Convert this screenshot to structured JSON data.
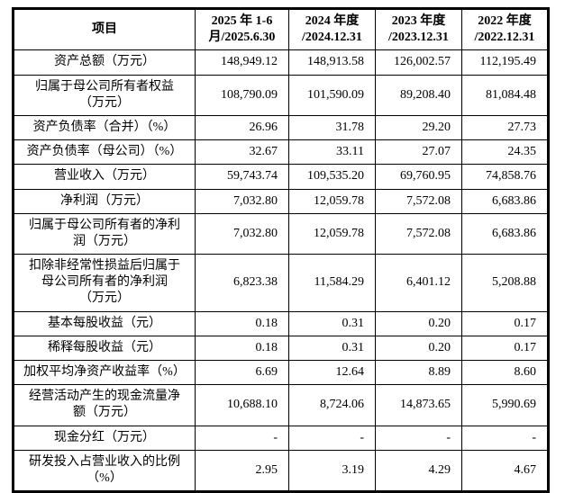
{
  "table": {
    "header": {
      "item_label": "项目",
      "periods": [
        "2025 年 1-6\n月/2025.6.30",
        "2024 年度\n/2024.12.31",
        "2023 年度\n/2023.12.31",
        "2022 年度\n/2022.12.31"
      ]
    },
    "rows": [
      {
        "label": "资产总额（万元）",
        "values": [
          "148,949.12",
          "148,913.58",
          "126,002.57",
          "112,195.49"
        ]
      },
      {
        "label": "归属于母公司所有者权益\n（万元）",
        "values": [
          "108,790.09",
          "101,590.09",
          "89,208.40",
          "81,084.48"
        ]
      },
      {
        "label": "资产负债率（合并）（%）",
        "values": [
          "26.96",
          "31.78",
          "29.20",
          "27.73"
        ]
      },
      {
        "label": "资产负债率（母公司）（%）",
        "values": [
          "32.67",
          "33.11",
          "27.07",
          "24.35"
        ]
      },
      {
        "label": "营业收入（万元）",
        "values": [
          "59,743.74",
          "109,535.20",
          "69,760.95",
          "74,858.76"
        ]
      },
      {
        "label": "净利润（万元）",
        "values": [
          "7,032.80",
          "12,059.78",
          "7,572.08",
          "6,683.86"
        ]
      },
      {
        "label": "归属于母公司所有者的净利\n润（万元）",
        "values": [
          "7,032.80",
          "12,059.78",
          "7,572.08",
          "6,683.86"
        ]
      },
      {
        "label": "扣除非经常性损益后归属于\n母公司所有者的净利润\n（万元）",
        "values": [
          "6,823.38",
          "11,584.29",
          "6,401.12",
          "5,208.88"
        ]
      },
      {
        "label": "基本每股收益（元）",
        "values": [
          "0.18",
          "0.31",
          "0.20",
          "0.17"
        ]
      },
      {
        "label": "稀释每股收益（元）",
        "values": [
          "0.18",
          "0.31",
          "0.20",
          "0.17"
        ]
      },
      {
        "label": "加权平均净资产收益率（%）",
        "values": [
          "6.69",
          "12.64",
          "8.89",
          "8.60"
        ]
      },
      {
        "label": "经营活动产生的现金流量净\n额（万元）",
        "values": [
          "10,688.10",
          "8,724.06",
          "14,873.65",
          "5,990.69"
        ]
      },
      {
        "label": "现金分红（万元）",
        "values": [
          "-",
          "-",
          "-",
          "-"
        ]
      },
      {
        "label": "研发投入占营业收入的比例\n（%）",
        "values": [
          "2.95",
          "3.19",
          "4.29",
          "4.67"
        ]
      }
    ]
  }
}
